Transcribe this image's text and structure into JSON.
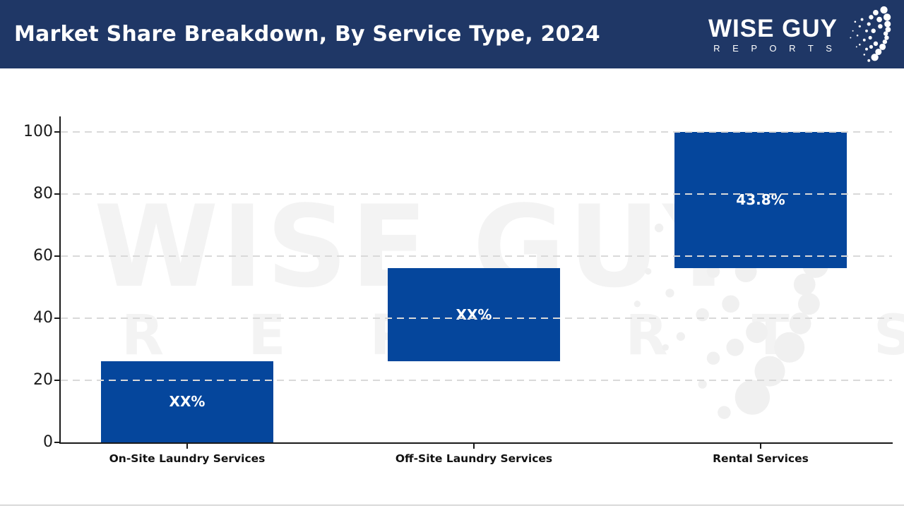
{
  "header": {
    "title": "Market Share Breakdown, By Service Type, 2024",
    "bg_color": "#1f3766",
    "logo": {
      "line1": "WISE GUY",
      "line2": "R E P O R T S"
    }
  },
  "watermark": {
    "line1": "WISE GUY",
    "line2": "R E P O R T S"
  },
  "chart_data": {
    "type": "bar",
    "subtype": "waterfall",
    "title": "Market Share Breakdown, By Service Type, 2024",
    "categories": [
      "On-Site Laundry Services",
      "Off-Site Laundry Services",
      "Rental Services"
    ],
    "segments": [
      {
        "category": "On-Site Laundry Services",
        "start": 0,
        "end": 26.2,
        "label": "XX%"
      },
      {
        "category": "Off-Site Laundry Services",
        "start": 26.2,
        "end": 56.2,
        "label": "XX%"
      },
      {
        "category": "Rental Services",
        "start": 56.2,
        "end": 100,
        "label": "43.8%"
      }
    ],
    "ylim": [
      0,
      105
    ],
    "yticks": [
      0,
      20,
      40,
      60,
      80,
      100
    ],
    "grid": "dashed horizontal, drawn above bars",
    "legend": "none",
    "bar_color": "#05469c",
    "bar_label_color": "#ffffff",
    "grid_color": "#d9d9d9",
    "axis_color": "#1a1a1a"
  }
}
